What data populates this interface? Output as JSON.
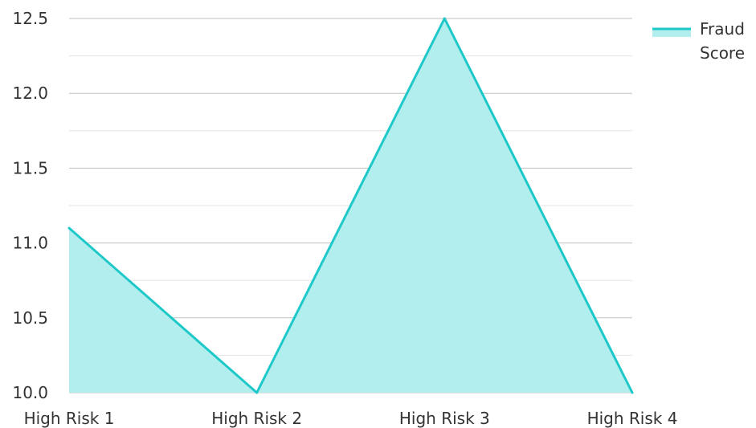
{
  "chart_data": {
    "type": "area",
    "categories": [
      "High Risk 1",
      "High Risk 2",
      "High Risk 3",
      "High Risk 4"
    ],
    "series": [
      {
        "name": "Fraud Score",
        "values": [
          11.1,
          10.0,
          12.5,
          10.0
        ]
      }
    ],
    "y_ticks": [
      "10.0",
      "10.5",
      "11.0",
      "11.5",
      "12.0",
      "12.5"
    ],
    "ylim": [
      10.0,
      12.5
    ],
    "grid": true,
    "legend_placement": "top-right",
    "colors": {
      "line": "#1ec8c8",
      "fill": "#b2eeee",
      "grid_major": "#bfbfbf",
      "grid_minor": "#e3e3e3"
    }
  }
}
